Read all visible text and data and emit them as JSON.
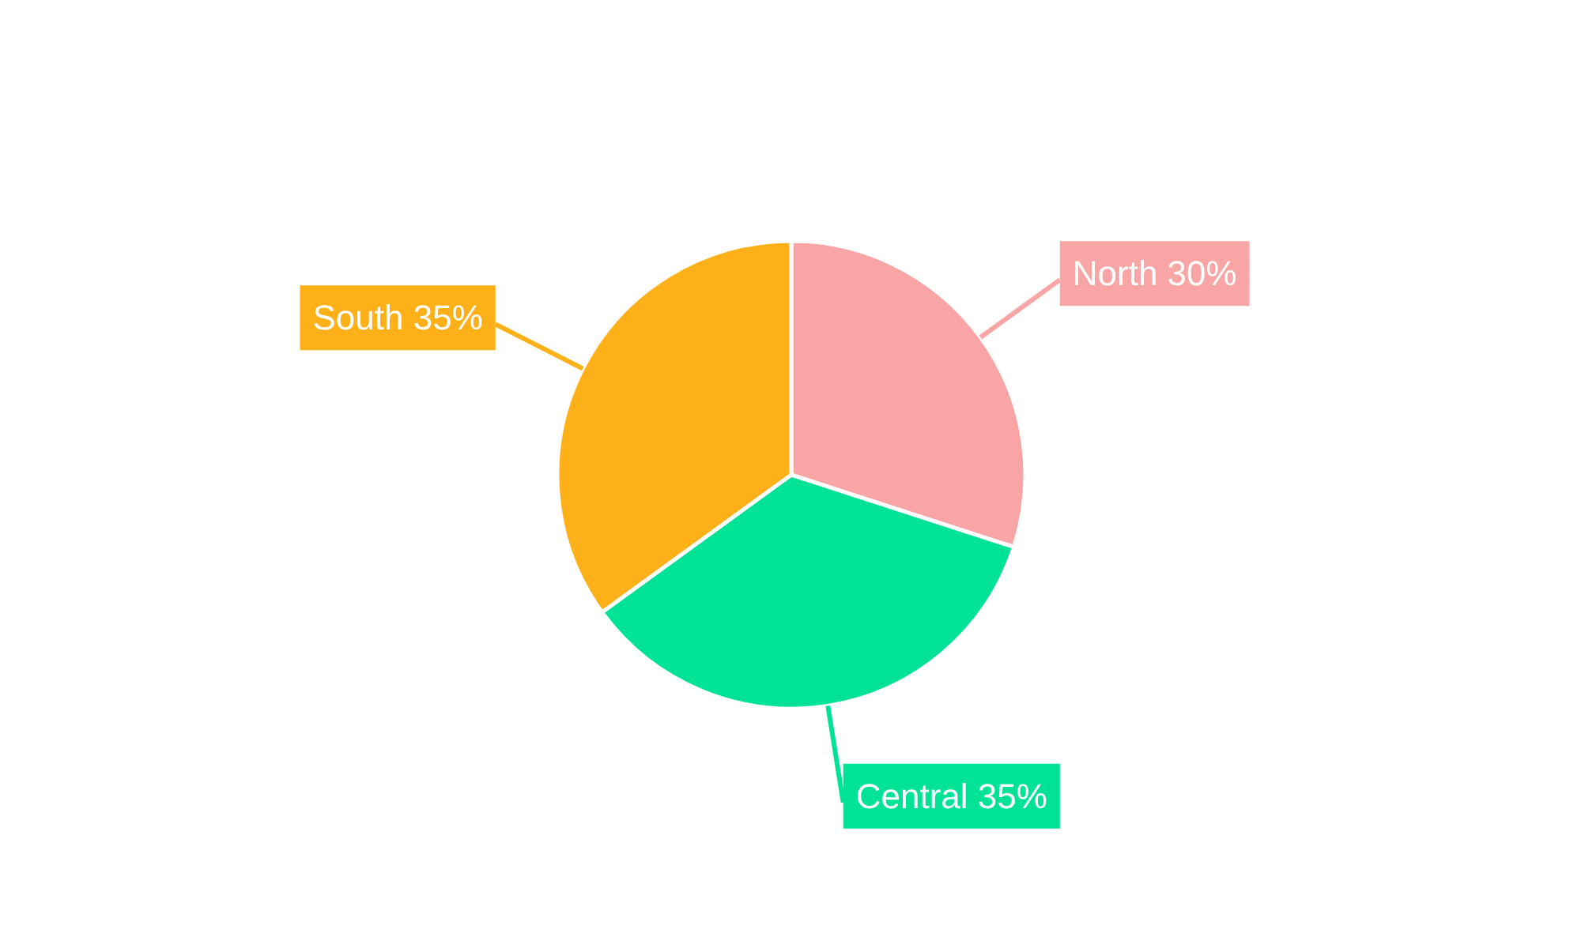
{
  "chart_data": {
    "type": "pie",
    "categories": [
      "North",
      "Central",
      "South"
    ],
    "values": [
      30,
      35,
      35
    ],
    "colors": [
      "#f9a5a5",
      "#00e396",
      "#feb019"
    ],
    "value_labels": [
      "30%",
      "35%",
      "35%"
    ]
  }
}
